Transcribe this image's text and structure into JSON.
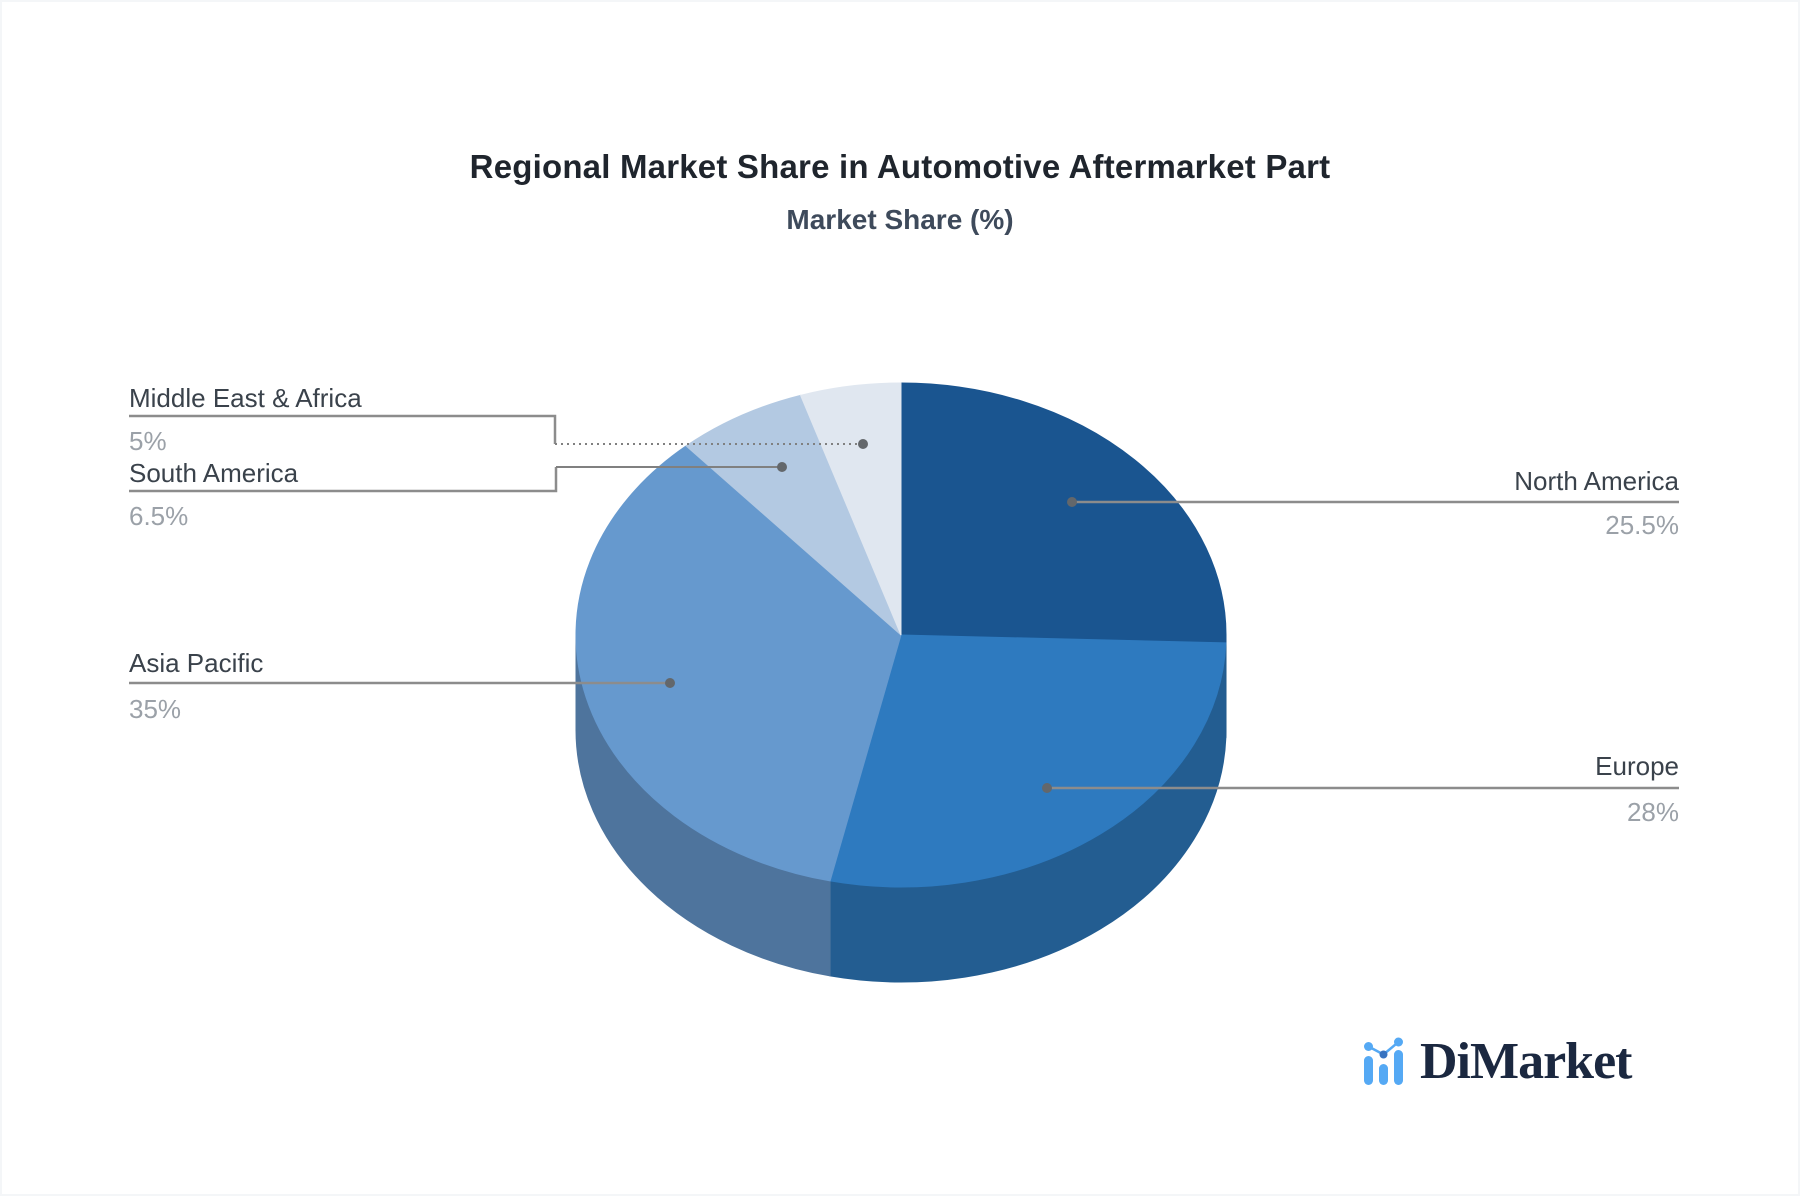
{
  "header": {
    "title": "Regional Market Share in Automotive Aftermarket Part",
    "subtitle": "Market Share (%)"
  },
  "chart_data": {
    "type": "pie",
    "style": "3d",
    "title": "Regional Market Share in Automotive Aftermarket Part",
    "subtitle": "Market Share (%)",
    "unit": "%",
    "start_angle_deg": 0,
    "direction": "clockwise",
    "legend_position": "callout-labels",
    "slices": [
      {
        "label": "North America",
        "value": 25.5,
        "display": "25.5%",
        "color": "#1A5590"
      },
      {
        "label": "Europe",
        "value": 28,
        "display": "28%",
        "color": "#2E7ABF"
      },
      {
        "label": "Asia Pacific",
        "value": 35,
        "display": "35%",
        "color": "#6699CE"
      },
      {
        "label": "South America",
        "value": 6.5,
        "display": "6.5%",
        "color": "#B3C9E2"
      },
      {
        "label": "Middle East & Africa",
        "value": 5,
        "display": "5%",
        "color": "#E0E7F0"
      }
    ]
  },
  "branding": {
    "name": "DiMarket",
    "icon": "bar-line-chart-logo-icon",
    "text_color": "#1b2840",
    "icon_color": "#55A9F4"
  },
  "colors": {
    "title": "#1f252d",
    "subtitle": "#3e4a5b",
    "label_text": "#3a424b",
    "value_text": "#9ba1a8",
    "leader_line": "#8c8c8c"
  }
}
